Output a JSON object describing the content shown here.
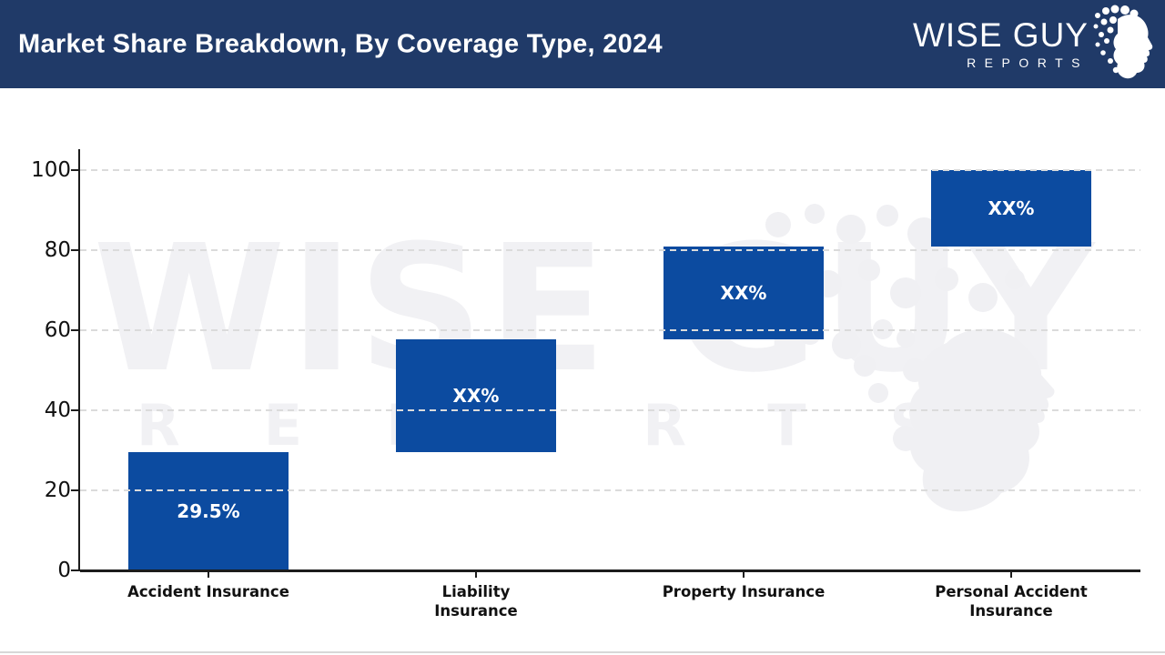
{
  "header": {
    "title": "Market Share Breakdown, By Coverage Type, 2024",
    "logo": {
      "name": "WISE GUY",
      "subtitle": "REPORTS"
    }
  },
  "watermark": {
    "line1": "WISE GUY",
    "line2": "REPORTS"
  },
  "chart_data": {
    "type": "bar",
    "subtype": "waterfall",
    "title": "Market Share Breakdown, By Coverage Type, 2024",
    "categories": [
      "Accident Insurance",
      "Liability\nInsurance",
      "Property Insurance",
      "Personal Accident\nInsurance"
    ],
    "bars": [
      {
        "category": "Accident Insurance",
        "label": "29.5%",
        "start": 0,
        "end": 29.5
      },
      {
        "category": "Liability Insurance",
        "label": "XX%",
        "start": 29.5,
        "end": 57.8
      },
      {
        "category": "Property Insurance",
        "label": "XX%",
        "start": 57.8,
        "end": 81
      },
      {
        "category": "Personal Accident Insurance",
        "label": "XX%",
        "start": 81,
        "end": 100
      }
    ],
    "yticks": [
      0,
      20,
      40,
      60,
      80,
      100
    ],
    "ylim": [
      0,
      105
    ],
    "xlabel": "",
    "ylabel": "",
    "grid": "horizontal-dashed",
    "legend": "none",
    "bar_color": "#0C4BA0",
    "bar_label_color": "#FFFFFF",
    "grid_color": "#DBDBDB",
    "header_color": "#203A68"
  }
}
